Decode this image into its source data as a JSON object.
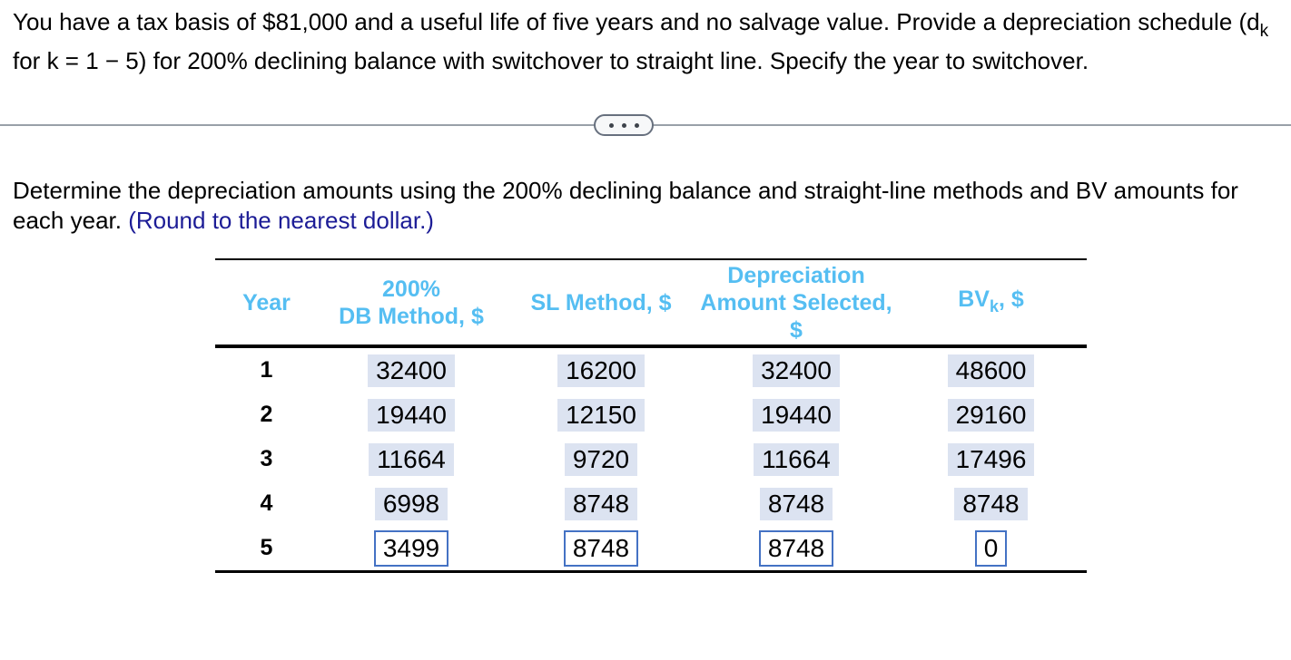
{
  "question": {
    "part1": "You have a tax basis of $81,000 and a useful life of five years and no salvage value. Provide a depreciation schedule (d",
    "sub": "k",
    "part2": " for k = 1 − 5) for 200% declining balance with switchover to straight line. Specify the year to switchover."
  },
  "divider": {
    "toggle_icon": "ellipsis-icon"
  },
  "prompt": {
    "main": "Determine the depreciation amounts using the 200% declining balance and straight-line methods and BV amounts for each year. ",
    "note": "(Round to the nearest dollar.)"
  },
  "table": {
    "header": {
      "year": "Year",
      "db_line1": "200%",
      "db_line2": "DB Method, $",
      "sl": "SL Method, $",
      "selected_line1": "Depreciation",
      "selected_line2": "Amount Selected,",
      "selected_line3": "$",
      "bv_prefix": "BV",
      "bv_sub": "k",
      "bv_suffix": ", $"
    },
    "rows": [
      {
        "year": "1",
        "db": "32400",
        "sl": "16200",
        "selected": "32400",
        "bv": "48600"
      },
      {
        "year": "2",
        "db": "19440",
        "sl": "12150",
        "selected": "19440",
        "bv": "29160"
      },
      {
        "year": "3",
        "db": "11664",
        "sl": "9720",
        "selected": "11664",
        "bv": "17496"
      },
      {
        "year": "4",
        "db": "6998",
        "sl": "8748",
        "selected": "8748",
        "bv": "8748"
      },
      {
        "year": "5",
        "db": "3499",
        "sl": "8748",
        "selected": "8748",
        "bv": "0"
      }
    ]
  },
  "colors": {
    "header_blue": "#55BEF2",
    "filled_cell_bg": "#DCE3F1",
    "input_border_blue": "#4472C4",
    "note_navy": "#1C1C96",
    "divider_gray": "#99A0A8"
  }
}
